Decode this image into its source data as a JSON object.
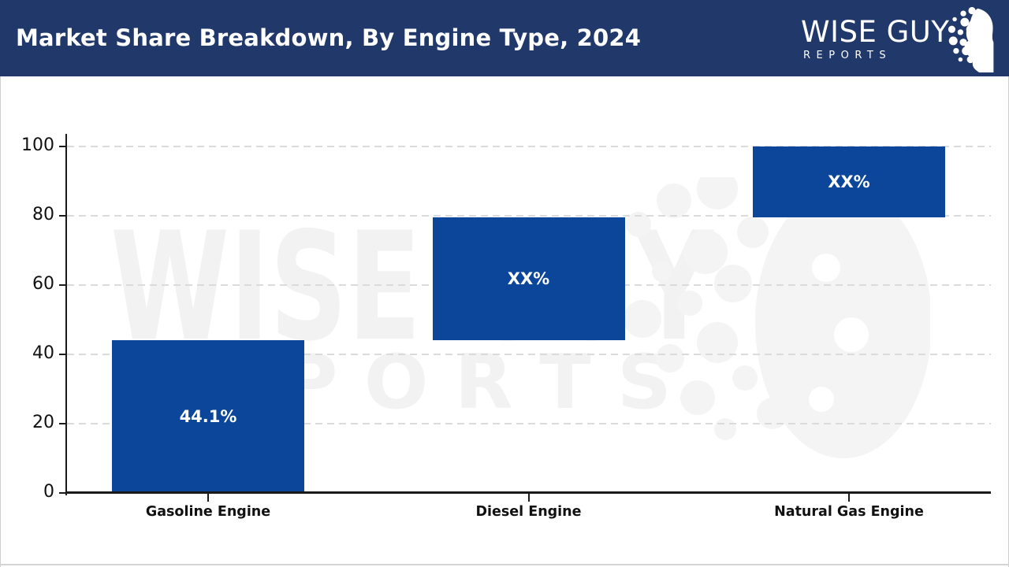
{
  "header": {
    "title": "Market Share Breakdown, By Engine Type, 2024",
    "background_color": "#21386B",
    "logo": {
      "wordmark": "WISE GUY",
      "subtext": "REPORTS"
    }
  },
  "watermark": {
    "line1": "WISE GUY",
    "line2": "R E P O R T S"
  },
  "chart_data": {
    "type": "bar",
    "subtype": "waterfall",
    "title": "Market Share Breakdown, By Engine Type, 2024",
    "categories": [
      "Gasoline Engine",
      "Diesel Engine",
      "Natural Gas Engine"
    ],
    "segments": [
      {
        "category": "Gasoline Engine",
        "start": 0,
        "end": 44.1,
        "label": "44.1%"
      },
      {
        "category": "Diesel Engine",
        "start": 44.1,
        "end": 79.5,
        "label": "XX%"
      },
      {
        "category": "Natural Gas Engine",
        "start": 79.5,
        "end": 100,
        "label": "XX%"
      }
    ],
    "values_shown": [
      "44.1%",
      "XX%",
      "XX%"
    ],
    "yticks": [
      0,
      20,
      40,
      60,
      80,
      100
    ],
    "ylim": [
      0,
      103.6
    ],
    "xlabel": "",
    "ylabel": "",
    "legend_position": "none",
    "grid": "horizontal-dashed",
    "bar_color": "#0B469B",
    "bar_label_color": "#FFFFFF",
    "axis_color": "#1A1A1A",
    "gridline_color": "#DBDBDB",
    "tick_label_color": "#111111"
  }
}
